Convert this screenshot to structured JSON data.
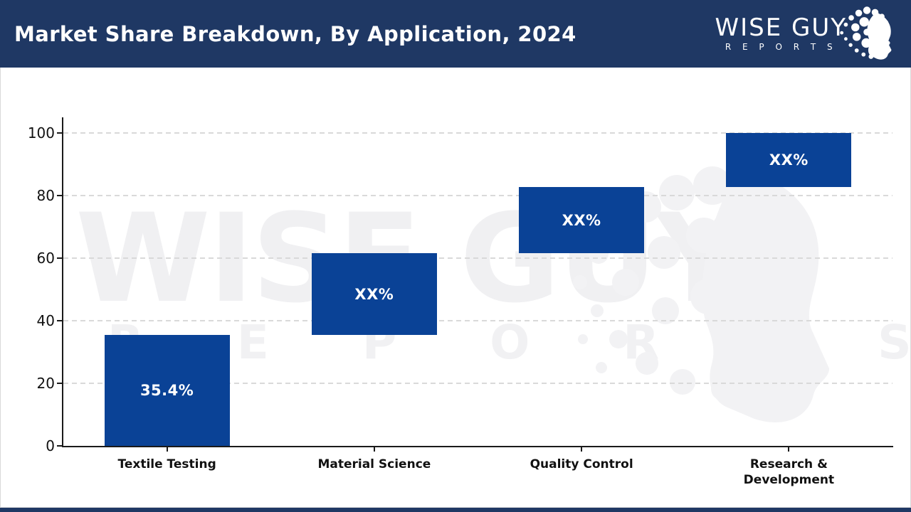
{
  "header": {
    "title": "Market Share Breakdown, By Application, 2024",
    "brand": {
      "wordmark": "WISE GUY",
      "subtext": "R E P O R T S"
    },
    "bg_color": "#1F3864",
    "text_color": "#FFFFFF"
  },
  "watermark": {
    "wordmark": "WISE GUY",
    "subtext": "R E P O R T S"
  },
  "chart_data": {
    "type": "bar",
    "subtype": "floating-segment-bar",
    "title": "Market Share Breakdown, By Application, 2024",
    "categories": [
      "Textile Testing",
      "Material Science",
      "Quality Control",
      "Research & Development"
    ],
    "segments": [
      {
        "category": "Textile Testing",
        "start": 0,
        "end": 35.4,
        "label": "35.4%"
      },
      {
        "category": "Material Science",
        "start": 35.4,
        "end": 61.6,
        "label": "XX%"
      },
      {
        "category": "Quality Control",
        "start": 61.6,
        "end": 82.7,
        "label": "XX%"
      },
      {
        "category": "Research & Development",
        "start": 82.7,
        "end": 100,
        "label": "XX%"
      }
    ],
    "ylim": [
      0,
      100
    ],
    "yticks": [
      0,
      20,
      40,
      60,
      80,
      100
    ],
    "xlabel": "",
    "ylabel": "",
    "grid": "horizontal-dashed",
    "legend": "none",
    "bar_color": "#0A4296",
    "bar_label_color": "#FFFFFF",
    "axis_color": "#1a1a1a"
  }
}
